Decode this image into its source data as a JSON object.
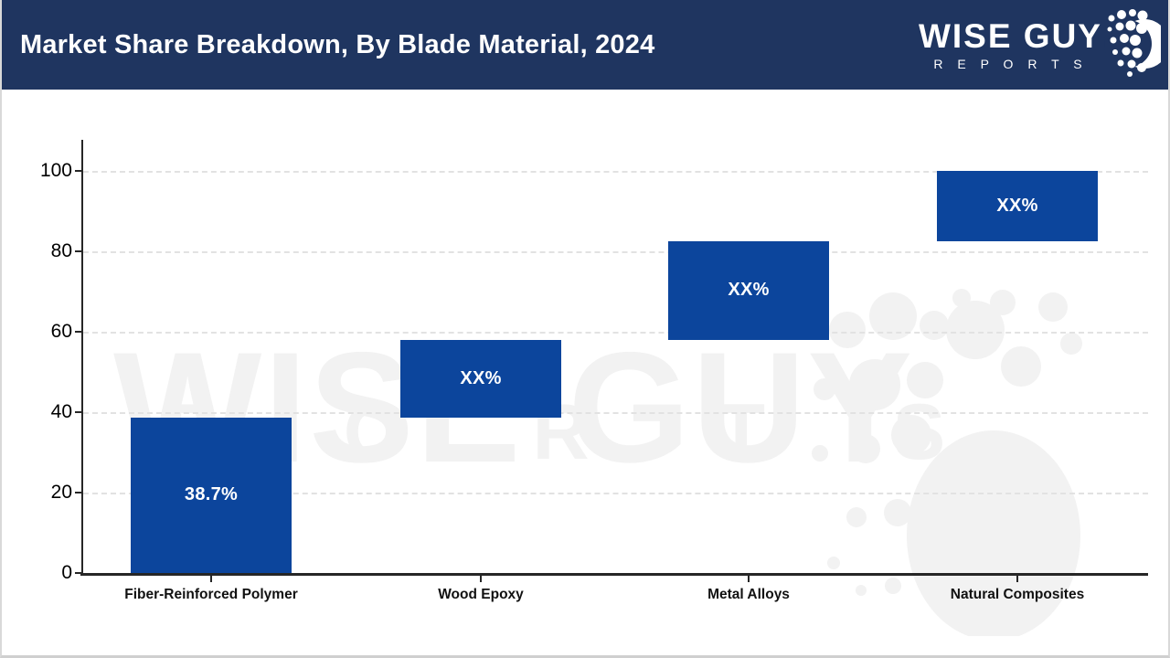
{
  "header": {
    "title": "Market Share Breakdown, By Blade Material, 2024",
    "logo": {
      "wordmark": "WISE GUY",
      "subtext": "R E P O R T S"
    }
  },
  "watermark": {
    "wordmark": "WISE GUY",
    "subtext": "P O R T S"
  },
  "chart_data": {
    "type": "bar",
    "subtype": "waterfall",
    "title": "Market Share Breakdown, By Blade Material, 2024",
    "xlabel": "",
    "ylabel": "",
    "ylim": [
      0,
      107
    ],
    "yticks": [
      0,
      20,
      40,
      60,
      80,
      100
    ],
    "grid": "horizontal dashed, light gray",
    "legend": "none",
    "categories": [
      "Fiber-Reinforced Polymer",
      "Wood Epoxy",
      "Metal Alloys",
      "Natural Composites"
    ],
    "segments": [
      {
        "category": "Fiber-Reinforced Polymer",
        "start": 0,
        "end": 38.7,
        "value_label": "38.7%"
      },
      {
        "category": "Wood Epoxy",
        "start": 38.7,
        "end": 58.0,
        "value_label": "XX%"
      },
      {
        "category": "Metal Alloys",
        "start": 58.0,
        "end": 82.6,
        "value_label": "XX%"
      },
      {
        "category": "Natural Composites",
        "start": 82.6,
        "end": 100,
        "value_label": "XX%"
      }
    ],
    "colors": {
      "bar": "#0c459c",
      "bar_label": "#ffffff",
      "axis": "#262626",
      "tick_label": "#000000",
      "grid": "#e2e2e2",
      "header_bg": "#1f3560",
      "watermark": "#f2f2f2"
    }
  }
}
